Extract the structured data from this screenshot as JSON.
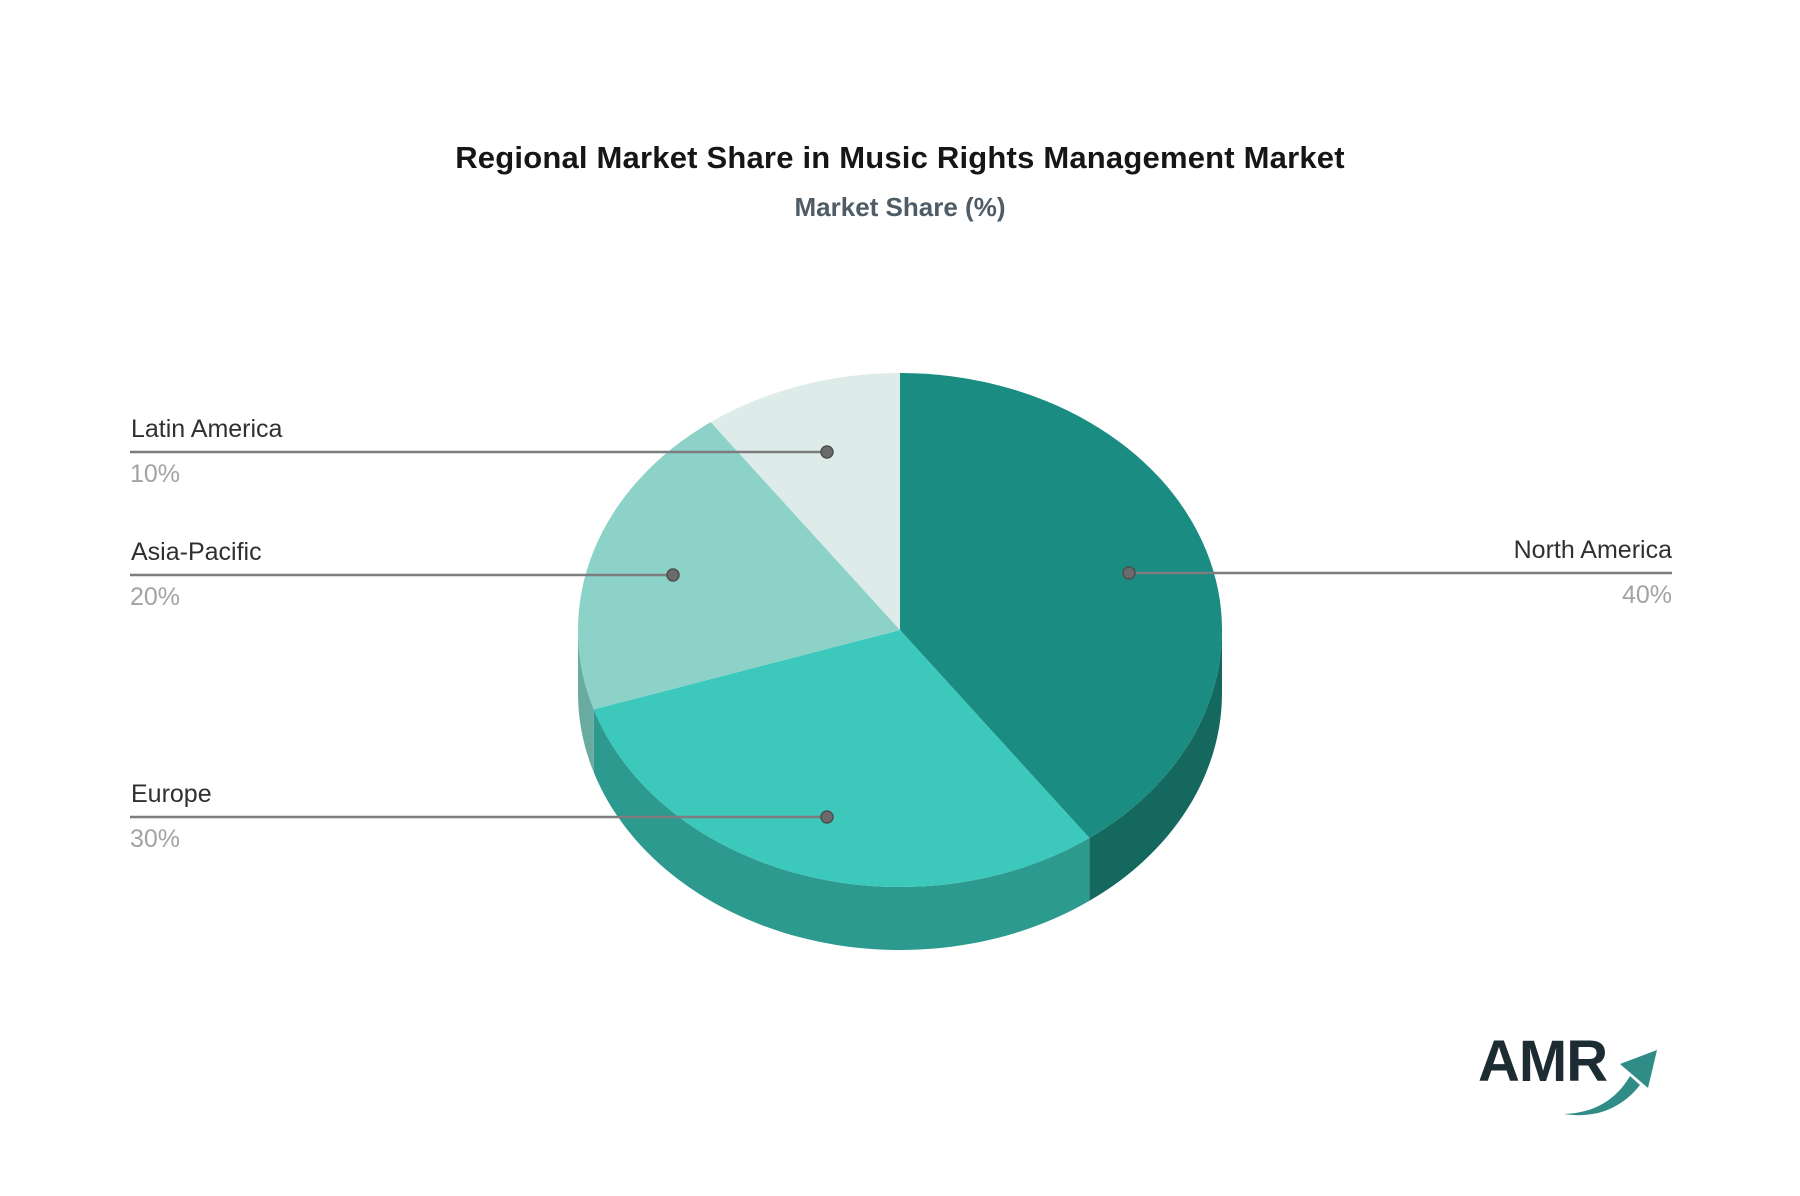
{
  "title": "Regional Market Share in Music Rights Management Market",
  "subtitle": "Market Share (%)",
  "logo": {
    "text": "AMR",
    "arrow_icon_color": "#2f8c86",
    "text_color": "#1d2b33"
  },
  "leader_style": {
    "line_color": "#7d7d7d",
    "dot_color": "#6b6b6b"
  },
  "chart_data": {
    "type": "pie",
    "title": "Regional Market Share in Music Rights Management Market",
    "subtitle": "Market Share (%)",
    "unit": "%",
    "style": "3d-pie",
    "start_angle_deg": -90,
    "direction": "clockwise",
    "legend_position": "leader-labels",
    "points": [
      {
        "label": "North America",
        "value": 40,
        "pct_label": "40%",
        "color": "#1a8c81",
        "side_color": "#15685e"
      },
      {
        "label": "Europe",
        "value": 30,
        "pct_label": "30%",
        "color": "#3cc9bc",
        "side_color": "#2d9a8f"
      },
      {
        "label": "Asia-Pacific",
        "value": 20,
        "pct_label": "20%",
        "color": "#8cd2c8",
        "side_color": "#6aaba1"
      },
      {
        "label": "Latin America",
        "value": 10,
        "pct_label": "10%",
        "color": "#ddece8",
        "side_color": "#b9d7d0"
      }
    ]
  }
}
